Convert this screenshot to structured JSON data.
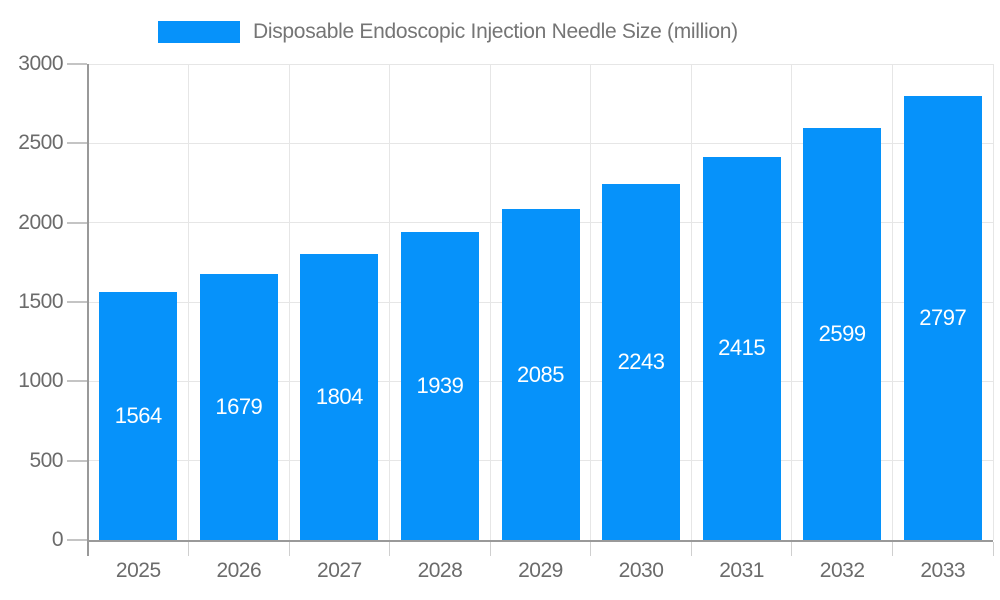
{
  "legend": {
    "label": "Disposable Endoscopic Injection Needle Size (million)",
    "swatch_color": "#0692fa"
  },
  "chart_data": {
    "type": "bar",
    "title": "Disposable Endoscopic Injection Needle Size (million)",
    "categories": [
      "2025",
      "2026",
      "2027",
      "2028",
      "2029",
      "2030",
      "2031",
      "2032",
      "2033"
    ],
    "values": [
      1564,
      1679,
      1804,
      1939,
      2085,
      2243,
      2415,
      2599,
      2797
    ],
    "xlabel": "",
    "ylabel": "",
    "ylim": [
      0,
      3000
    ],
    "yticks": [
      0,
      500,
      1000,
      1500,
      2000,
      2500,
      3000
    ],
    "grid": true,
    "legend_position": "top",
    "bar_color": "#0692fa",
    "value_label_color": "#ffffff",
    "axis_label_color": "#6b6b6b",
    "grid_color": "#e6e6e6"
  }
}
